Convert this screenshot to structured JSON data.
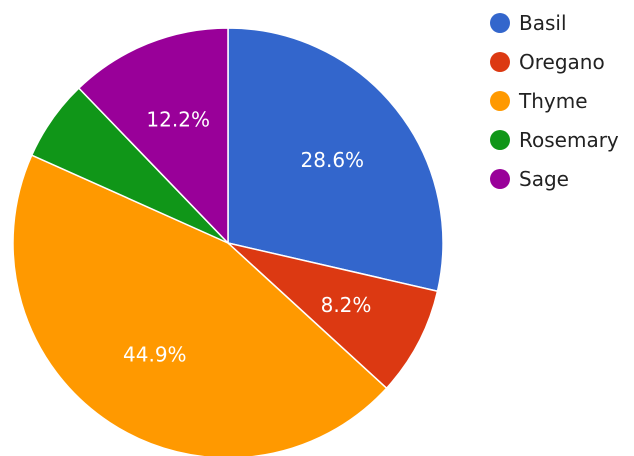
{
  "chart_data": {
    "type": "pie",
    "title": "",
    "start_angle_deg": 0,
    "direction": "clockwise",
    "legend_position": "right-top",
    "slices": [
      {
        "name": "Basil",
        "value": 28.6,
        "label": "28.6%",
        "color": "#3366cc"
      },
      {
        "name": "Oregano",
        "value": 8.2,
        "label": "8.2%",
        "color": "#dc3912"
      },
      {
        "name": "Thyme",
        "value": 44.9,
        "label": "44.9%",
        "color": "#ff9900"
      },
      {
        "name": "Rosemary",
        "value": 6.1,
        "label": "",
        "color": "#109618"
      },
      {
        "name": "Sage",
        "value": 12.2,
        "label": "12.2%",
        "color": "#990099"
      }
    ]
  }
}
